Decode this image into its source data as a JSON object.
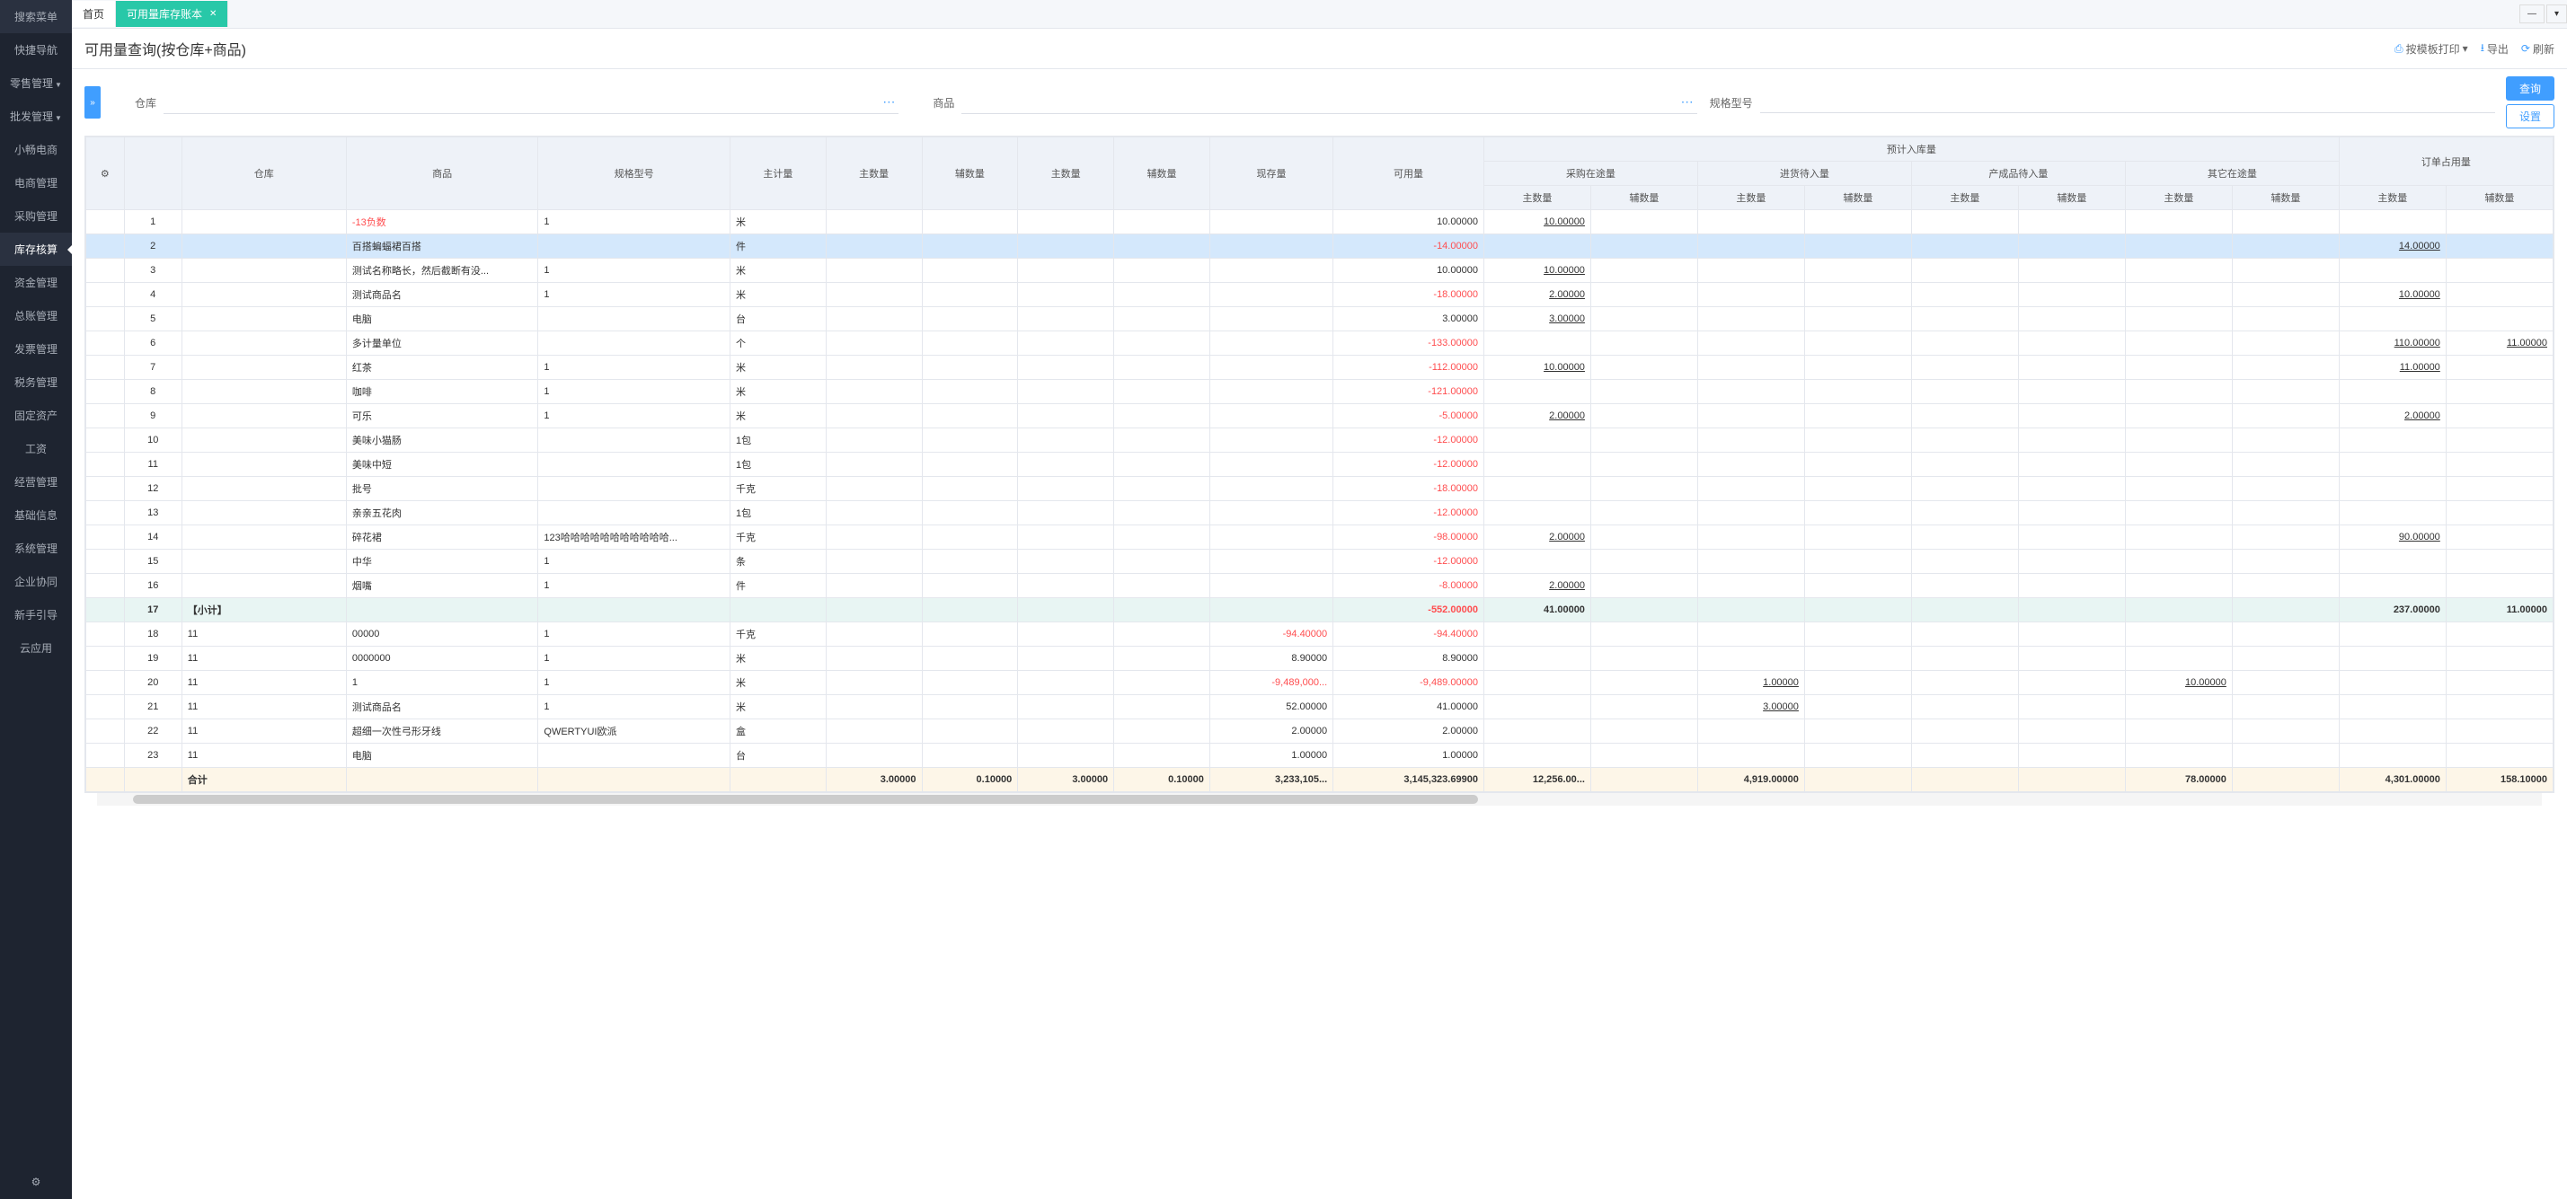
{
  "sidebar": {
    "items": [
      {
        "label": "搜索菜单",
        "chevron": false
      },
      {
        "label": "快捷导航",
        "chevron": false
      },
      {
        "label": "零售管理",
        "chevron": true
      },
      {
        "label": "批发管理",
        "chevron": true
      },
      {
        "label": "小畅电商",
        "chevron": false
      },
      {
        "label": "电商管理",
        "chevron": false
      },
      {
        "label": "采购管理",
        "chevron": false
      },
      {
        "label": "库存核算",
        "chevron": false,
        "active": true
      },
      {
        "label": "资金管理",
        "chevron": false
      },
      {
        "label": "总账管理",
        "chevron": false
      },
      {
        "label": "发票管理",
        "chevron": false
      },
      {
        "label": "税务管理",
        "chevron": false
      },
      {
        "label": "固定资产",
        "chevron": false
      },
      {
        "label": "工资",
        "chevron": false
      },
      {
        "label": "经营管理",
        "chevron": false
      },
      {
        "label": "基础信息",
        "chevron": false
      },
      {
        "label": "系统管理",
        "chevron": false
      },
      {
        "label": "企业协同",
        "chevron": false
      },
      {
        "label": "新手引导",
        "chevron": false
      },
      {
        "label": "云应用",
        "chevron": false
      }
    ]
  },
  "tabs": {
    "home": "首页",
    "active": "可用量库存账本"
  },
  "page": {
    "title": "可用量查询(按仓库+商品)",
    "actions": {
      "print": "按模板打印",
      "export": "导出",
      "refresh": "刷新"
    }
  },
  "filters": {
    "warehouse": "仓库",
    "product": "商品",
    "spec": "规格型号",
    "query": "查询",
    "settings": "设置"
  },
  "columns": {
    "warehouse": "仓库",
    "product": "商品",
    "spec": "规格型号",
    "main_unit": "主计量",
    "main_qty": "主数量",
    "aux_qty": "辅数量",
    "main_qty2": "主数量",
    "aux_qty2": "辅数量",
    "stock": "现存量",
    "avail": "可用量",
    "expected_in": "预计入库量",
    "purchase": "采购在途量",
    "arrival": "进货待入量",
    "finished": "产成品待入量",
    "other": "其它在途量",
    "order_occupy": "订单占用量",
    "sub_main": "主数量",
    "sub_aux": "辅数量"
  },
  "rows": [
    {
      "idx": "1",
      "wh": "",
      "prod": "-13负数",
      "prod_neg": true,
      "spec": "1",
      "unit": "米",
      "avail": "10.00000",
      "c1": "10.00000",
      "c1_link": true
    },
    {
      "idx": "2",
      "wh": "",
      "prod": "百搭蝙蝠裙百搭",
      "spec": "",
      "unit": "件",
      "avail": "-14.00000",
      "avail_neg": true,
      "o1": "14.00000",
      "o1_link": true,
      "selected": true
    },
    {
      "idx": "3",
      "wh": "",
      "prod": "测试名称略长，然后截断有没...",
      "spec": "1",
      "unit": "米",
      "avail": "10.00000",
      "c1": "10.00000",
      "c1_link": true
    },
    {
      "idx": "4",
      "wh": "",
      "prod": "测试商品名",
      "spec": "1",
      "unit": "米",
      "avail": "-18.00000",
      "avail_neg": true,
      "c1": "2.00000",
      "c1_link": true,
      "o1": "10.00000",
      "o1_link": true
    },
    {
      "idx": "5",
      "wh": "",
      "prod": "电脑",
      "spec": "",
      "unit": "台",
      "avail": "3.00000",
      "c1": "3.00000",
      "c1_link": true
    },
    {
      "idx": "6",
      "wh": "",
      "prod": "多计量单位",
      "spec": "",
      "unit": "个",
      "avail": "-133.00000",
      "avail_neg": true,
      "o1": "110.00000",
      "o1_link": true,
      "o2": "11.00000",
      "o2_link": true
    },
    {
      "idx": "7",
      "wh": "",
      "prod": "红茶",
      "spec": "1",
      "unit": "米",
      "avail": "-112.00000",
      "avail_neg": true,
      "c1": "10.00000",
      "c1_link": true,
      "o1": "11.00000",
      "o1_link": true
    },
    {
      "idx": "8",
      "wh": "",
      "prod": "咖啡",
      "spec": "1",
      "unit": "米",
      "avail": "-121.00000",
      "avail_neg": true
    },
    {
      "idx": "9",
      "wh": "",
      "prod": "可乐",
      "spec": "1",
      "unit": "米",
      "avail": "-5.00000",
      "avail_neg": true,
      "c1": "2.00000",
      "c1_link": true,
      "o1": "2.00000",
      "o1_link": true
    },
    {
      "idx": "10",
      "wh": "",
      "prod": "美味小猫肠",
      "spec": "",
      "unit": "1包",
      "avail": "-12.00000",
      "avail_neg": true
    },
    {
      "idx": "11",
      "wh": "",
      "prod": "美味中短",
      "spec": "",
      "unit": "1包",
      "avail": "-12.00000",
      "avail_neg": true
    },
    {
      "idx": "12",
      "wh": "",
      "prod": "批号",
      "spec": "",
      "unit": "千克",
      "avail": "-18.00000",
      "avail_neg": true
    },
    {
      "idx": "13",
      "wh": "",
      "prod": "亲亲五花肉",
      "spec": "",
      "unit": "1包",
      "avail": "-12.00000",
      "avail_neg": true
    },
    {
      "idx": "14",
      "wh": "",
      "prod": "碎花裙",
      "spec": "123哈哈哈哈哈哈哈哈哈哈哈...",
      "unit": "千克",
      "avail": "-98.00000",
      "avail_neg": true,
      "c1": "2.00000",
      "c1_link": true,
      "o1": "90.00000",
      "o1_link": true
    },
    {
      "idx": "15",
      "wh": "",
      "prod": "中华",
      "spec": "1",
      "unit": "条",
      "avail": "-12.00000",
      "avail_neg": true
    },
    {
      "idx": "16",
      "wh": "",
      "prod": "烟嘴",
      "spec": "1",
      "unit": "件",
      "avail": "-8.00000",
      "avail_neg": true,
      "c1": "2.00000",
      "c1_link": true
    },
    {
      "idx": "17",
      "wh": "【小计】",
      "subtotal": true,
      "avail": "-552.00000",
      "avail_neg": true,
      "c1": "41.00000",
      "o1": "237.00000",
      "o2": "11.00000"
    },
    {
      "idx": "18",
      "wh": "11",
      "prod": "00000",
      "spec": "1",
      "unit": "千克",
      "stock": "-94.40000",
      "stock_neg": true,
      "avail": "-94.40000",
      "avail_neg": true
    },
    {
      "idx": "19",
      "wh": "11",
      "prod": "0000000",
      "spec": "1",
      "unit": "米",
      "stock": "8.90000",
      "avail": "8.90000"
    },
    {
      "idx": "20",
      "wh": "11",
      "prod": "1",
      "spec": "1",
      "unit": "米",
      "stock": "-9,489,000...",
      "stock_neg": true,
      "avail": "-9,489.00000",
      "avail_neg": true,
      "c2": "1.00000",
      "c2_link": true,
      "c4": "10.00000",
      "c4_link": true
    },
    {
      "idx": "21",
      "wh": "11",
      "prod": "测试商品名",
      "spec": "1",
      "unit": "米",
      "stock": "52.00000",
      "avail": "41.00000",
      "c2": "3.00000",
      "c2_link": true
    },
    {
      "idx": "22",
      "wh": "11",
      "prod": "超细一次性弓形牙线",
      "spec": "QWERTYUI欧派",
      "unit": "盒",
      "stock": "2.00000",
      "avail": "2.00000"
    },
    {
      "idx": "23",
      "wh": "11",
      "prod": "电脑",
      "spec": "",
      "unit": "台",
      "stock": "1.00000",
      "avail": "1.00000"
    }
  ],
  "total": {
    "label": "合计",
    "mainqty": "3.00000",
    "aux": "0.10000",
    "mainqty2": "3.00000",
    "aux2": "0.10000",
    "stock": "3,233,105...",
    "avail": "3,145,323.69900",
    "c1": "12,256.00...",
    "c2": "4,919.00000",
    "c4": "78.00000",
    "o1": "4,301.00000",
    "o2": "158.10000"
  }
}
